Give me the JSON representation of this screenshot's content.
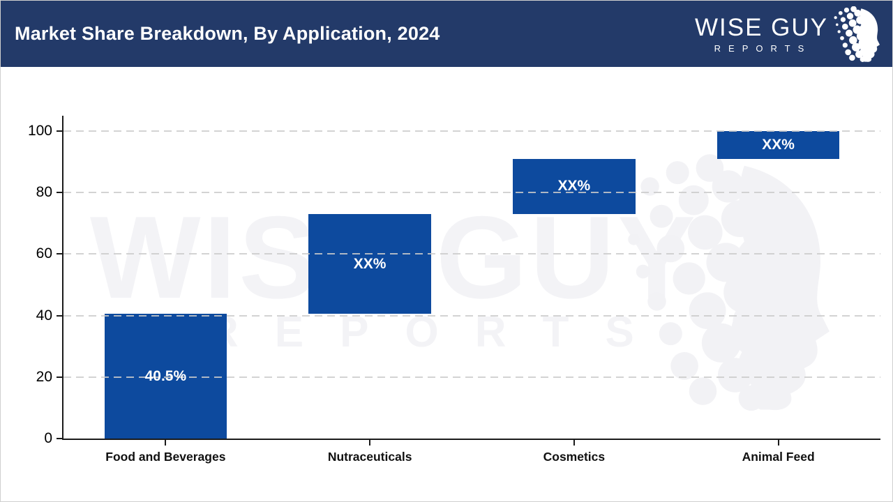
{
  "header": {
    "title": "Market Share Breakdown, By Application, 2024",
    "bg_color": "#233a69",
    "logo": {
      "line1": "WISE GUY",
      "line2": "REPORTS"
    }
  },
  "watermark": {
    "line1": "WISE GUY",
    "line2": "REPORTS"
  },
  "chart_data": {
    "type": "bar",
    "subtype": "waterfall",
    "title": "Market Share Breakdown, By Application, 2024",
    "categories": [
      "Food and Beverages",
      "Nutraceuticals",
      "Cosmetics",
      "Animal Feed"
    ],
    "segments": [
      {
        "category": "Food and Beverages",
        "start": 0,
        "end": 40.5,
        "label": "40.5%"
      },
      {
        "category": "Nutraceuticals",
        "start": 40.5,
        "end": 73,
        "label": "XX%"
      },
      {
        "category": "Cosmetics",
        "start": 73,
        "end": 91,
        "label": "XX%"
      },
      {
        "category": "Animal Feed",
        "start": 91,
        "end": 100,
        "label": "XX%"
      }
    ],
    "xlabel": "",
    "ylabel": "",
    "ylim": [
      0,
      105
    ],
    "yticks": [
      0,
      20,
      40,
      60,
      80,
      100
    ],
    "grid": "dashed horizontal, drawn over bars",
    "legend": "none",
    "bar_color": "#0d4a9e",
    "bar_label_color": "#ffffff"
  }
}
